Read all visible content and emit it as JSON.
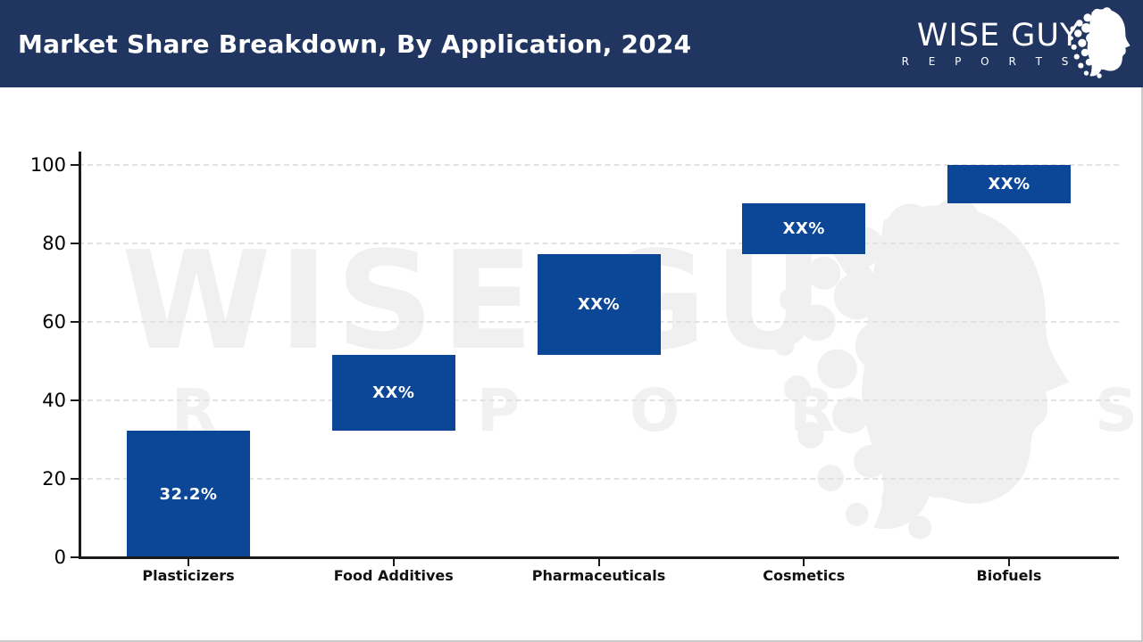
{
  "header": {
    "title": "Market Share Breakdown, By Application, 2024",
    "background_color": "#203560"
  },
  "logo": {
    "name": "WISE GUY",
    "subtitle": "R E P O R T S"
  },
  "watermark": {
    "name": "WISE GUY",
    "subtitle": "R E P O R T S"
  },
  "chart_data": {
    "type": "bar",
    "subtype": "waterfall",
    "title": "Market Share Breakdown, By Application, 2024",
    "categories": [
      "Plasticizers",
      "Food Additives",
      "Pharmaceuticals",
      "Cosmetics",
      "Biofuels"
    ],
    "segments": [
      {
        "category": "Plasticizers",
        "start": 0,
        "end": 32.2,
        "label": "32.2%"
      },
      {
        "category": "Food Additives",
        "start": 32.2,
        "end": 51.7,
        "label": "XX%"
      },
      {
        "category": "Pharmaceuticals",
        "start": 51.7,
        "end": 77.2,
        "label": "XX%"
      },
      {
        "category": "Cosmetics",
        "start": 77.2,
        "end": 90.2,
        "label": "XX%"
      },
      {
        "category": "Biofuels",
        "start": 90.2,
        "end": 100,
        "label": "XX%"
      }
    ],
    "y_ticks": [
      0,
      20,
      40,
      60,
      80,
      100
    ],
    "ylim": [
      0,
      104
    ],
    "xlabel": "",
    "ylabel": "",
    "grid": "horizontal-dashed",
    "legend": "none",
    "bar_color": "#0b4697",
    "bar_label_color": "#ffffff",
    "axis_color": "#1a1a1a",
    "gridline_color": "#e2e2e2"
  }
}
